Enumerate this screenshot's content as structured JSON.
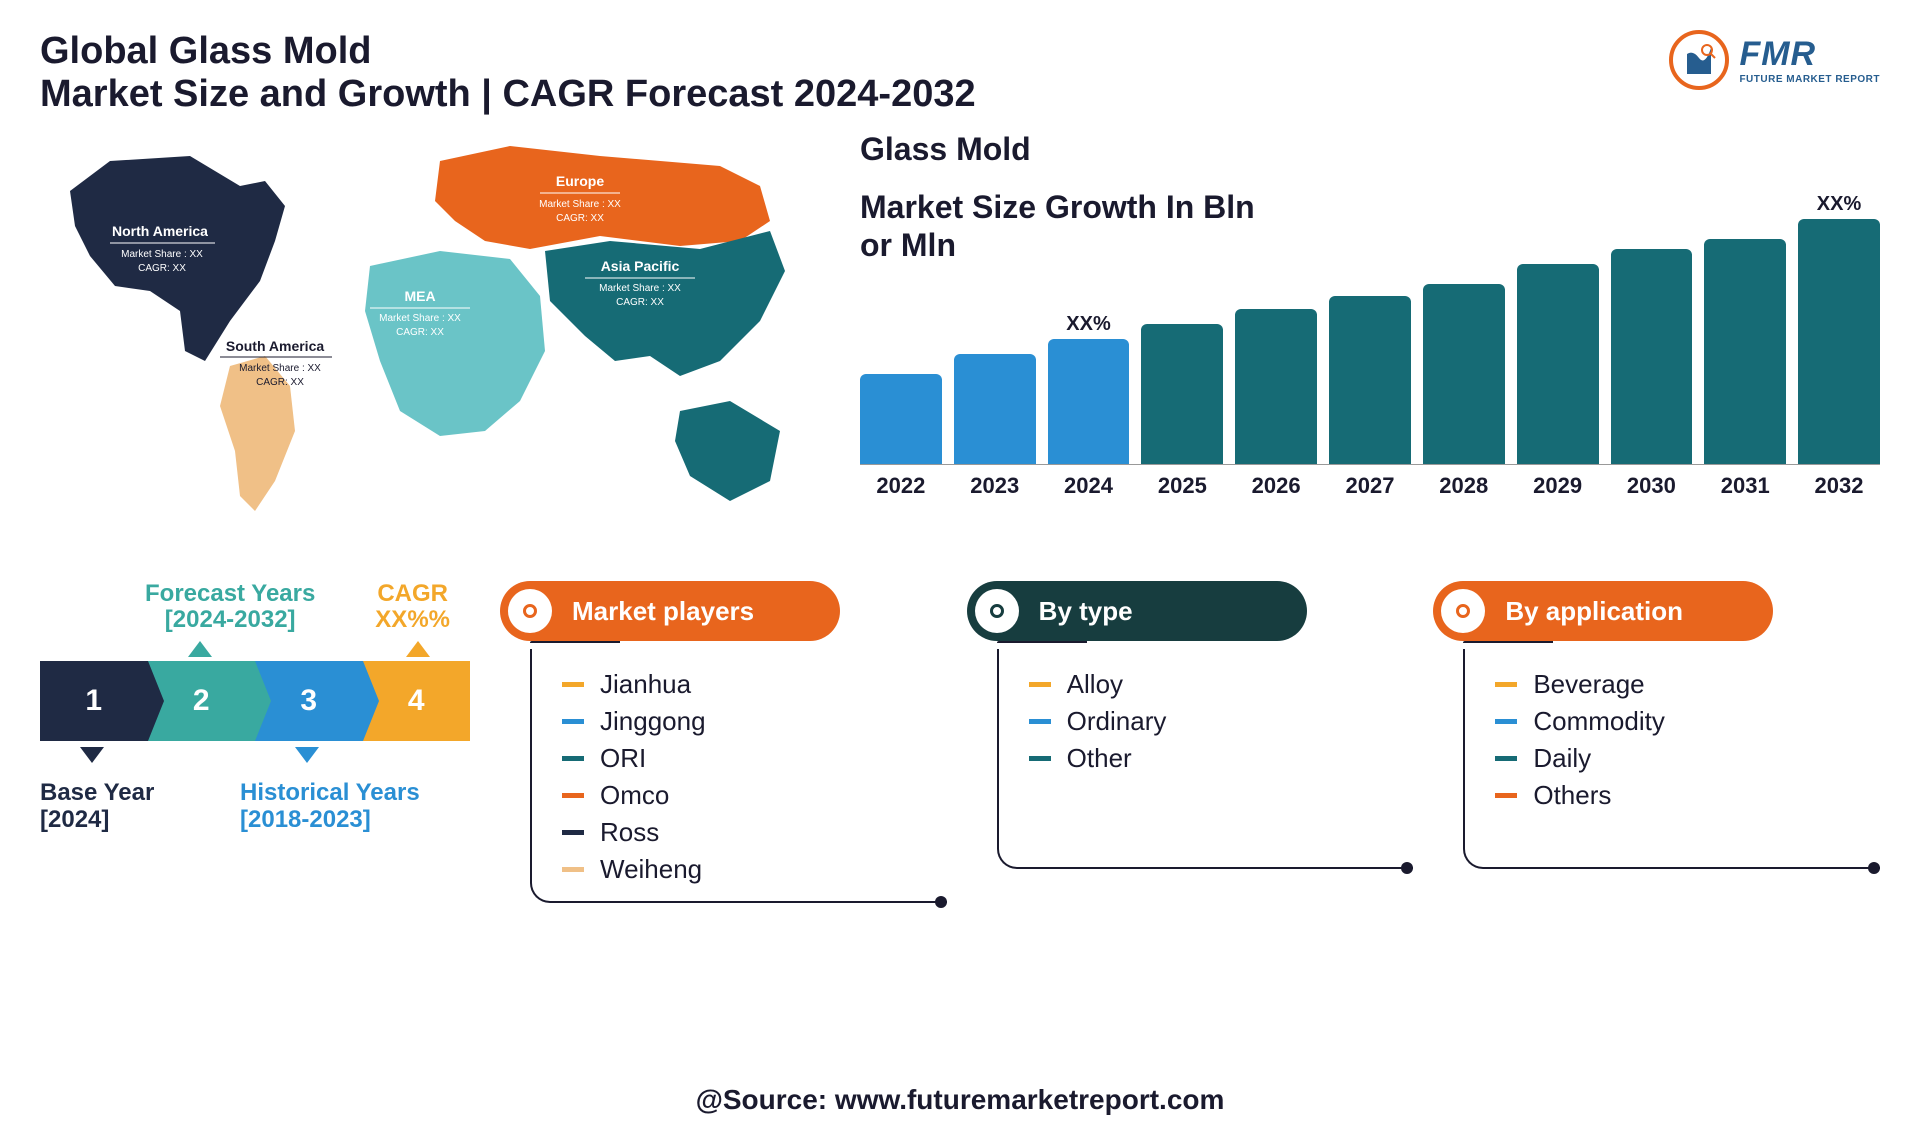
{
  "colors": {
    "dark_navy": "#1f2a44",
    "orange": "#e8651d",
    "teal": "#39a9a0",
    "teal_dark": "#166b75",
    "blue": "#2a8fd4",
    "wheat": "#f0c087",
    "yellow": "#f3a72a",
    "text": "#1a1a2e"
  },
  "logo": {
    "fmr": "FMR",
    "sub": "FUTURE MARKET REPORT"
  },
  "title": {
    "line1": "Global Glass Mold",
    "line2": " Market Size and Growth | CAGR Forecast 2024-2032"
  },
  "map": {
    "regions": [
      {
        "id": "north_america",
        "name": "North America",
        "share": "Market Share : XX",
        "cagr": "CAGR: XX",
        "color": "#1f2a44"
      },
      {
        "id": "south_america",
        "name": "South America",
        "share": "Market Share : XX",
        "cagr": "CAGR: XX",
        "color": "#f0c087"
      },
      {
        "id": "europe",
        "name": "Europe",
        "share": "Market Share : XX",
        "cagr": "CAGR: XX",
        "color": "#e8651d"
      },
      {
        "id": "mea",
        "name": "MEA",
        "share": "Market Share : XX",
        "cagr": "CAGR: XX",
        "color": "#6ac4c7"
      },
      {
        "id": "asia_pacific",
        "name": "Asia Pacific",
        "share": "Market Share : XX",
        "cagr": "CAGR: XX",
        "color": "#166b75"
      }
    ]
  },
  "chart": {
    "title1": "Glass Mold",
    "title2": "Market Size Growth In Bln or Mln",
    "label_2024": "XX%",
    "label_2032": "XX%",
    "bars": [
      {
        "year": "2022",
        "value": 90,
        "color": "#2a8fd4"
      },
      {
        "year": "2023",
        "value": 110,
        "color": "#2a8fd4"
      },
      {
        "year": "2024",
        "value": 125,
        "color": "#2a8fd4"
      },
      {
        "year": "2025",
        "value": 140,
        "color": "#166b75"
      },
      {
        "year": "2026",
        "value": 155,
        "color": "#166b75"
      },
      {
        "year": "2027",
        "value": 168,
        "color": "#166b75"
      },
      {
        "year": "2028",
        "value": 180,
        "color": "#166b75"
      },
      {
        "year": "2029",
        "value": 200,
        "color": "#166b75"
      },
      {
        "year": "2030",
        "value": 215,
        "color": "#166b75"
      },
      {
        "year": "2031",
        "value": 225,
        "color": "#166b75"
      },
      {
        "year": "2032",
        "value": 245,
        "color": "#166b75"
      }
    ],
    "max_value": 260,
    "axis_fontsize": 22
  },
  "timeline": {
    "forecast": {
      "label": "Forecast Years",
      "range": "[2024-2032]",
      "color": "#39a9a0"
    },
    "cagr": {
      "label": "CAGR",
      "value": "XX%%",
      "color": "#f3a72a"
    },
    "base": {
      "label": "Base Year",
      "range": "[2024]",
      "color": "#1f2a44"
    },
    "historical": {
      "label": "Historical Years",
      "range": "[2018-2023]",
      "color": "#2a8fd4"
    },
    "steps": [
      {
        "num": "1",
        "bg": "#1f2a44"
      },
      {
        "num": "2",
        "bg": "#39a9a0"
      },
      {
        "num": "3",
        "bg": "#2a8fd4"
      },
      {
        "num": "4",
        "bg": "#f3a72a"
      }
    ]
  },
  "pills": [
    {
      "id": "market_players",
      "title": "Market players",
      "header_bg": "#e8651d",
      "dot_border": "#e8651d",
      "items": [
        {
          "label": "Jianhua",
          "dash": "#f3a72a"
        },
        {
          "label": "Jinggong",
          "dash": "#2a8fd4"
        },
        {
          "label": "ORI",
          "dash": "#166b75"
        },
        {
          "label": "Omco",
          "dash": "#e8651d"
        },
        {
          "label": "Ross",
          "dash": "#1f2a44"
        },
        {
          "label": "Weiheng",
          "dash": "#f0c087"
        }
      ]
    },
    {
      "id": "by_type",
      "title": "By type",
      "header_bg": "#173d3f",
      "dot_border": "#173d3f",
      "items": [
        {
          "label": "Alloy",
          "dash": "#f3a72a"
        },
        {
          "label": "Ordinary",
          "dash": "#2a8fd4"
        },
        {
          "label": "Other",
          "dash": "#166b75"
        }
      ]
    },
    {
      "id": "by_application",
      "title": "By application",
      "header_bg": "#e8651d",
      "dot_border": "#e8651d",
      "items": [
        {
          "label": "Beverage",
          "dash": "#f3a72a"
        },
        {
          "label": "Commodity",
          "dash": "#2a8fd4"
        },
        {
          "label": "Daily",
          "dash": "#166b75"
        },
        {
          "label": "Others",
          "dash": "#e8651d"
        }
      ]
    }
  ],
  "source": "@Source: www.futuremarketreport.com"
}
